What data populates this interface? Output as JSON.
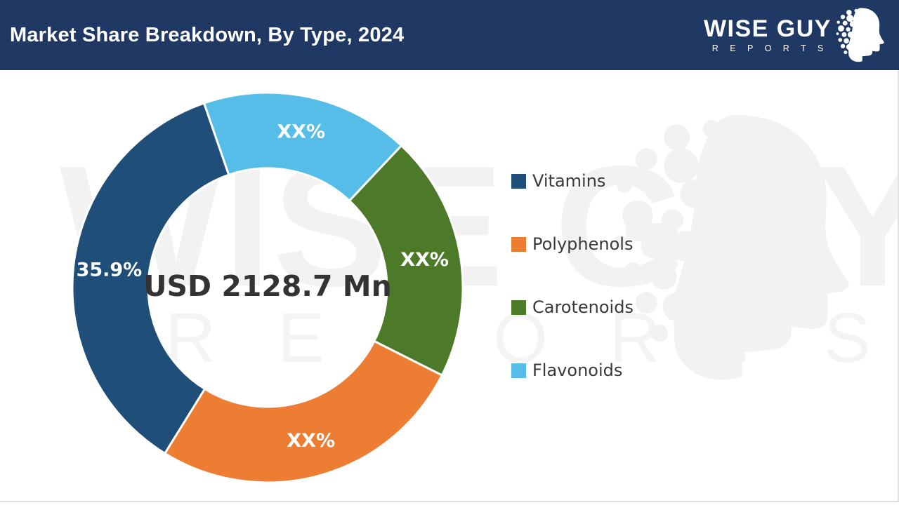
{
  "header": {
    "title": "Market Share Breakdown, By Type, 2024",
    "background_color": "#1f3864",
    "logo": {
      "line1": "WISE GUY",
      "line2": "R E P O R T S"
    }
  },
  "watermark": {
    "line1": "WISE GUY",
    "line2": "R E P O R T S"
  },
  "chart_data": {
    "type": "pie",
    "subtype": "donut",
    "title": "Market Share Breakdown, By Type, 2024",
    "center_label": "USD 2128.7 Mn",
    "start_angle_deg_clockwise_from_top": -19,
    "slices": [
      {
        "name": "Flavonoids",
        "label": "XX%",
        "value_pct_est": 17.3,
        "color": "#56bde8"
      },
      {
        "name": "Carotenoids",
        "label": "XX%",
        "value_pct_est": 20.4,
        "color": "#4d7a28"
      },
      {
        "name": "Polyphenols",
        "label": "XX%",
        "value_pct_est": 26.4,
        "color": "#ec7d33"
      },
      {
        "name": "Vitamins",
        "label": "35.9%",
        "value_pct_est": 35.9,
        "color": "#1f4e78"
      }
    ],
    "legend_position": "right",
    "legend": [
      {
        "label": "Vitamins",
        "color": "#1f4e78"
      },
      {
        "label": "Polyphenols",
        "color": "#ec7d33"
      },
      {
        "label": "Carotenoids",
        "color": "#4d7a28"
      },
      {
        "label": "Flavonoids",
        "color": "#56bde8"
      }
    ]
  }
}
